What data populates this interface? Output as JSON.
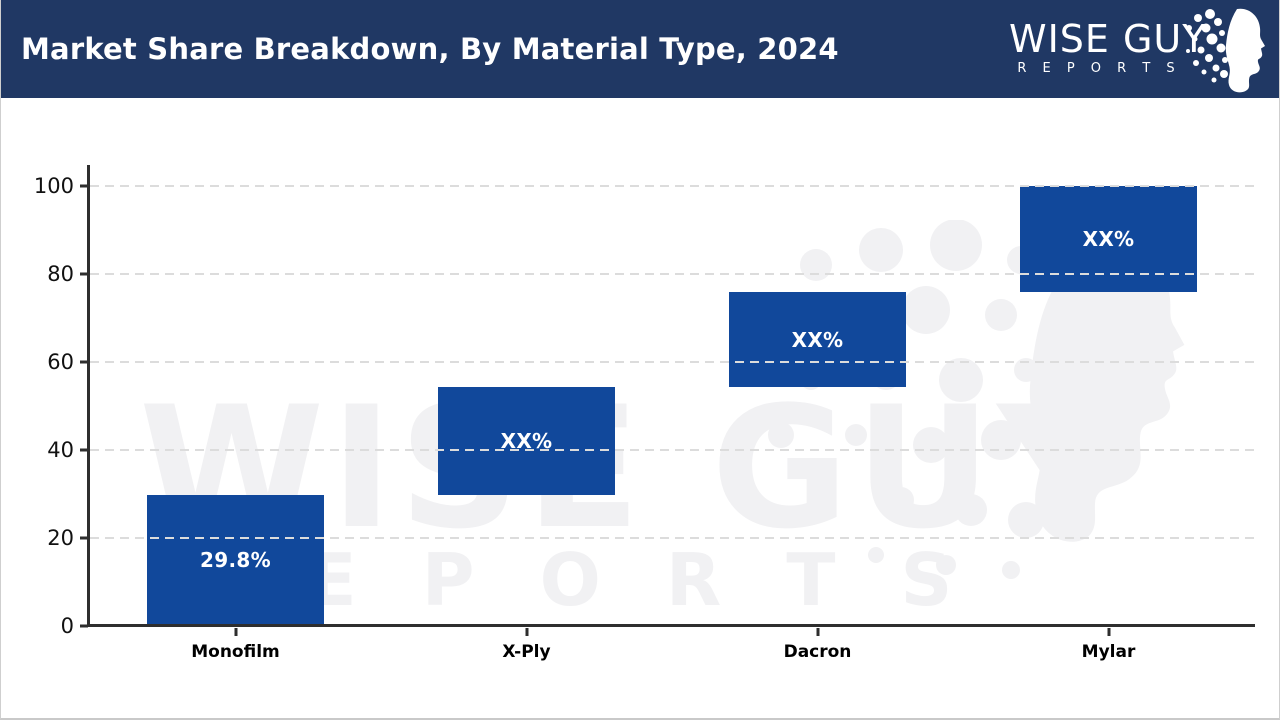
{
  "header": {
    "title": "Market Share Breakdown, By Material Type, 2024",
    "background_color": "#203864",
    "logo": {
      "line1": "WISE GUY",
      "line2": "R E P O R T S"
    }
  },
  "watermark": {
    "line1": "WISE GUY",
    "line2": "R E P O R T S",
    "color": "#f1f1f3"
  },
  "chart_data": {
    "type": "bar",
    "subtype": "waterfall",
    "title": "Market Share Breakdown, By Material Type, 2024",
    "categories": [
      "Monofilm",
      "X-Ply",
      "Dacron",
      "Mylar"
    ],
    "segments": [
      {
        "category": "Monofilm",
        "start": 0,
        "end": 29.8,
        "label": "29.8%"
      },
      {
        "category": "X-Ply",
        "start": 29.8,
        "end": 54.3,
        "label": "XX%"
      },
      {
        "category": "Dacron",
        "start": 54.3,
        "end": 75.9,
        "label": "XX%"
      },
      {
        "category": "Mylar",
        "start": 75.9,
        "end": 100,
        "label": "XX%"
      }
    ],
    "xlabel": "",
    "ylabel": "",
    "ylim": [
      0,
      100
    ],
    "yticks": [
      0,
      20,
      40,
      60,
      80,
      100
    ],
    "grid": true,
    "legend": "none",
    "bar_color": "#11489b",
    "bar_label_color": "#ffffff",
    "grid_color": "#dcdcdc",
    "axis_color": "#2e2e2e"
  }
}
